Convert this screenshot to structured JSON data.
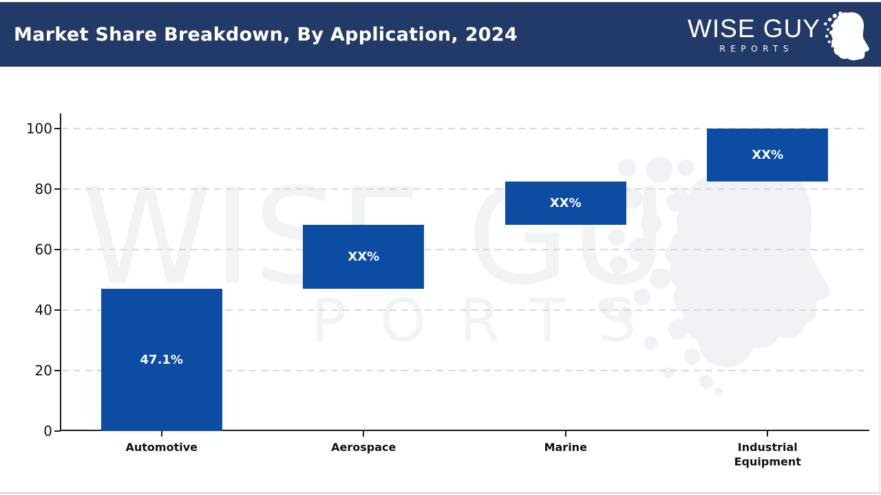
{
  "header": {
    "logo": {
      "line1": "WISE GUY",
      "line2": "REPORTS"
    }
  },
  "watermark": {
    "line1": "WISE GUY",
    "line2": "PORTS"
  },
  "chart_data": {
    "type": "bar",
    "subtype": "waterfall",
    "title": "Market Share Breakdown, By Application, 2024",
    "categories": [
      "Automotive",
      "Aerospace",
      "Marine",
      "Industrial Equipment"
    ],
    "segments": [
      {
        "category": "Automotive",
        "start": 0,
        "end": 47.1,
        "label": "47.1%"
      },
      {
        "category": "Aerospace",
        "start": 47.1,
        "end": 68.2,
        "label": "XX%"
      },
      {
        "category": "Marine",
        "start": 68.2,
        "end": 82.5,
        "label": "XX%"
      },
      {
        "category": "Industrial Equipment",
        "start": 82.5,
        "end": 100,
        "label": "XX%"
      }
    ],
    "ylabel": "",
    "xlabel": "",
    "yticks": [
      0,
      20,
      40,
      60,
      80,
      100
    ],
    "ylim": [
      0,
      105
    ],
    "grid": "dashed-horizontal",
    "legend": "none",
    "bar_color": "#0c4ca3",
    "bar_label_color": "#ffffff",
    "header_color": "#223a67",
    "watermark_color": "#f2f3f5"
  }
}
